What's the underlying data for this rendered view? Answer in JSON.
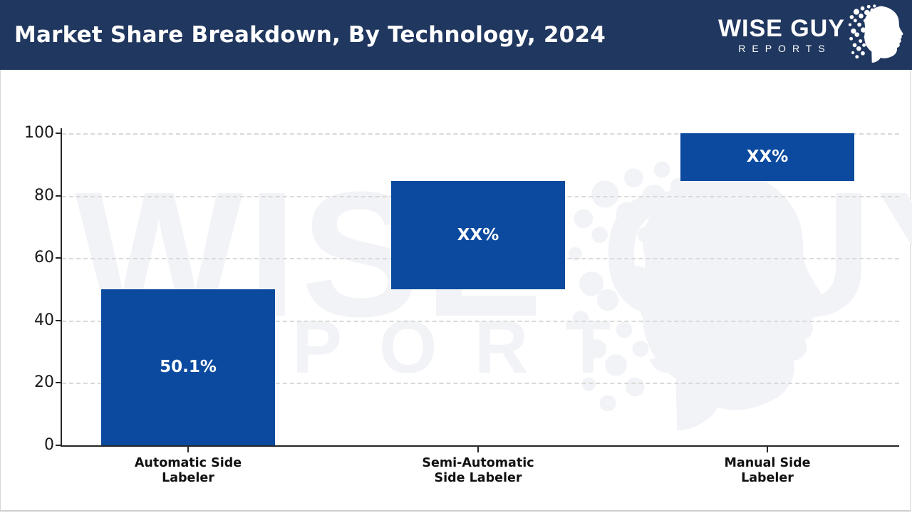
{
  "header": {
    "title": "Market Share Breakdown, By Technology, 2024",
    "logo": {
      "line1": "WISE GUY",
      "line2": "REPORTS"
    }
  },
  "watermark": {
    "line1": "WISE GUY",
    "line2": "REPORTS"
  },
  "colors": {
    "header_bg": "#20375f",
    "bar": "#0b4a9f",
    "grid": "#dadada",
    "axis": "#262626",
    "bar_label": "#ffffff",
    "watermark": "#f2f3f7"
  },
  "chart_data": {
    "type": "bar",
    "subtype": "stacked-waterfall-percent",
    "title": "Market Share Breakdown, By Technology, 2024",
    "categories": [
      "Automatic Side\nLabeler",
      "Semi-Automatic\nSide Labeler",
      "Manual Side\nLabeler"
    ],
    "segments": [
      {
        "category": "Automatic Side Labeler",
        "start": 0,
        "end": 50.1,
        "label": "50.1%"
      },
      {
        "category": "Semi-Automatic Side Labeler",
        "start": 50.1,
        "end": 84.8,
        "label": "XX%"
      },
      {
        "category": "Manual Side Labeler",
        "start": 84.8,
        "end": 100,
        "label": "XX%"
      }
    ],
    "ylim": [
      0,
      100
    ],
    "y_ticks": [
      0,
      20,
      40,
      60,
      80,
      100
    ],
    "xlabel": "",
    "ylabel": "",
    "grid": "horizontal-dashed",
    "legend": "none"
  }
}
